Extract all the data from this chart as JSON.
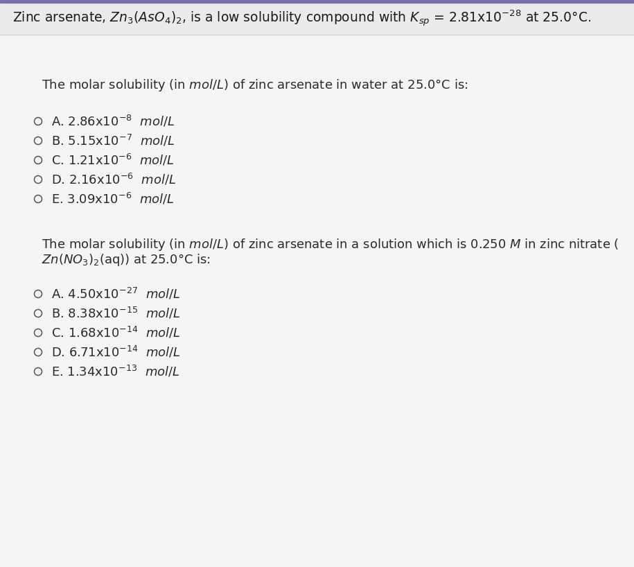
{
  "background_color": "#f5f5f5",
  "header_bg_color": "#ebebeb",
  "header_bar_color": "#7b6faa",
  "header_text": "Zinc arsenate, $Zn_3(AsO_4)_2$, is a low solubility compound with $K_{sp}$ = 2.81x10$^{-28}$ at 25.0°C.",
  "q1_prompt": "The molar solubility (in $mol/L$) of zinc arsenate in water at 25.0°C is:",
  "q1_options": [
    "A. 2.86x10$^{-8}$  $mol/L$",
    "B. 5.15x10$^{-7}$  $mol/L$",
    "C. 1.21x10$^{-6}$  $mol/L$",
    "D. 2.16x10$^{-6}$  $mol/L$",
    "E. 3.09x10$^{-6}$  $mol/L$"
  ],
  "q2_prompt_line1": "The molar solubility (in $mol/L$) of zinc arsenate in a solution which is 0.250 $M$ in zinc nitrate (",
  "q2_prompt_line2": "$Zn(NO_3)_2$(aq)) at 25.0°C is:",
  "q2_options": [
    "A. 4.50x10$^{-27}$  $mol/L$",
    "B. 8.38x10$^{-15}$  $mol/L$",
    "C. 1.68x10$^{-14}$  $mol/L$",
    "D. 6.71x10$^{-14}$  $mol/L$",
    "E. 1.34x10$^{-13}$  $mol/L$"
  ],
  "text_color": "#2a2a2a",
  "header_text_color": "#1a1a1a",
  "font_size_header": 13.5,
  "font_size_body": 13.0,
  "font_size_options": 13.0,
  "radio_color": "#555555",
  "fig_width": 9.15,
  "fig_height": 8.18,
  "dpi": 100
}
